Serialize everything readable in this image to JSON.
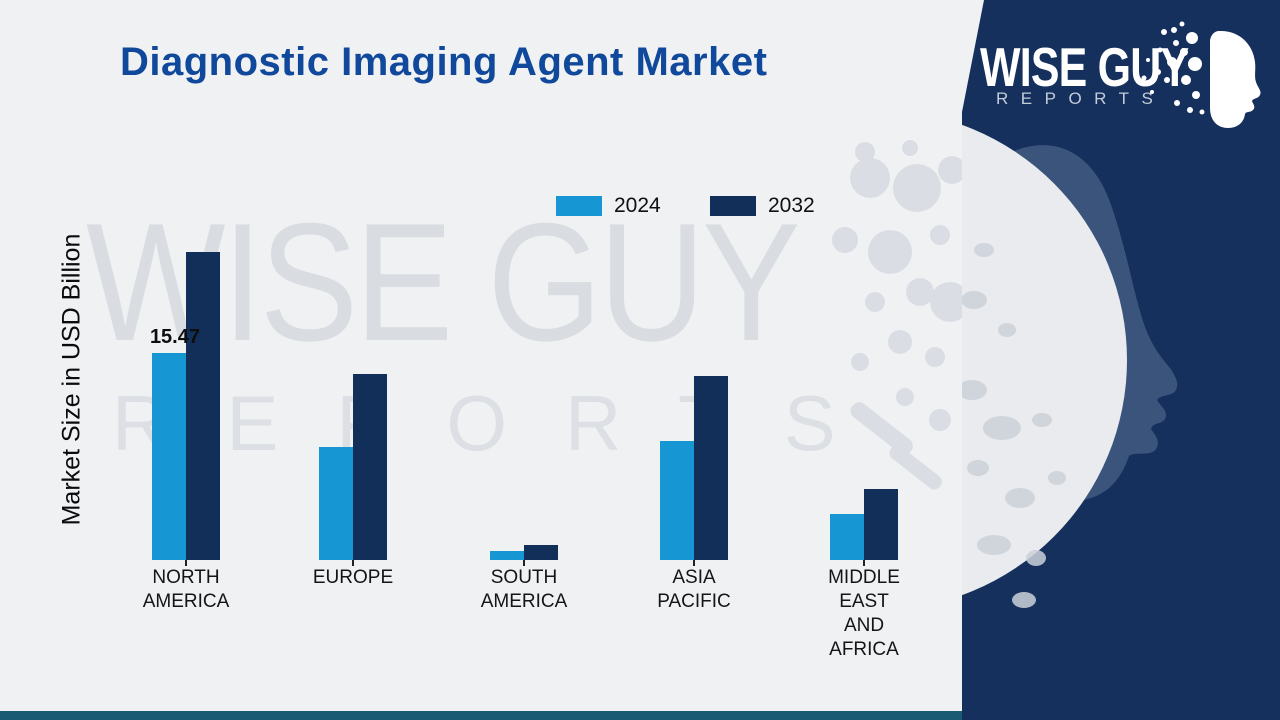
{
  "branding": {
    "logo_title": "WISE GUY",
    "logo_subtitle": "REPORTS",
    "watermark_title": "WISE GUY",
    "watermark_subtitle": "REPORTS"
  },
  "colors": {
    "title_blue": "#10489c",
    "series_2024": "#1697d3",
    "series_2032": "#122f5a",
    "panel_navy": "#15305c",
    "footer_teal": "#1b5a73",
    "background": "#f0f1f3",
    "watermark_gray": "#d9dce1",
    "face_silhouette": "#3b547b",
    "panel_circle": "#e9ebee"
  },
  "chart_data": {
    "type": "bar",
    "title": "Diagnostic Imaging Agent Market",
    "ylabel": "Market Size in USD Billion",
    "xlabel": "",
    "grid": false,
    "legend_position": "top",
    "ylim": [
      0,
      25
    ],
    "categories": [
      "NORTH AMERICA",
      "EUROPE",
      "SOUTH AMERICA",
      "ASIA PACIFIC",
      "MIDDLE EAST AND AFRICA"
    ],
    "category_label_lines": [
      [
        "NORTH",
        "AMERICA"
      ],
      [
        "EUROPE"
      ],
      [
        "SOUTH",
        "AMERICA"
      ],
      [
        "ASIA",
        "PACIFIC"
      ],
      [
        "MIDDLE",
        "EAST",
        "AND",
        "AFRICA"
      ]
    ],
    "series": [
      {
        "name": "2024",
        "color": "#1697d3",
        "values": [
          15.47,
          8.44,
          0.67,
          8.89,
          3.44
        ]
      },
      {
        "name": "2032",
        "color": "#122f5a",
        "values": [
          23.03,
          13.9,
          1.12,
          13.75,
          5.31
        ]
      }
    ],
    "data_labels": [
      {
        "series": "2024",
        "category": "NORTH AMERICA",
        "text": "15.47"
      }
    ]
  }
}
